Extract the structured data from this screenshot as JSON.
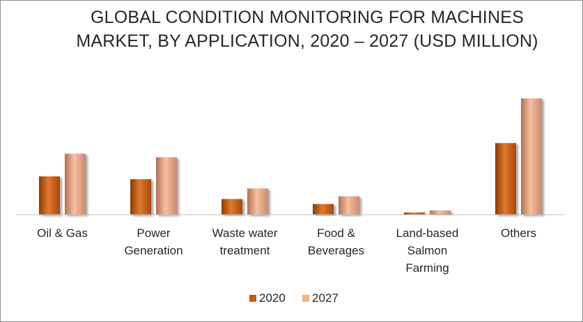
{
  "chart_data": {
    "type": "bar",
    "title_lines": [
      "GLOBAL CONDITION MONITORING FOR  MACHINES",
      "MARKET, BY APPLICATION, 2020 – 2027 (USD MILLION)"
    ],
    "categories": [
      [
        "Oil & Gas"
      ],
      [
        "Power",
        "Generation"
      ],
      [
        "Waste water",
        "treatment"
      ],
      [
        "Food &",
        "Beverages"
      ],
      [
        "Land-based",
        "Salmon",
        "Farming"
      ],
      [
        "Others"
      ]
    ],
    "series": [
      {
        "name": "2020",
        "values": [
          54,
          50,
          22,
          15,
          3,
          101
        ]
      },
      {
        "name": "2027",
        "values": [
          86,
          81,
          37,
          26,
          6,
          164
        ]
      }
    ],
    "ylim": [
      0,
      175
    ],
    "grid": false,
    "legend_position": "bottom",
    "colors": {
      "2020": "#c55a11",
      "2027": "#f4b183"
    }
  }
}
